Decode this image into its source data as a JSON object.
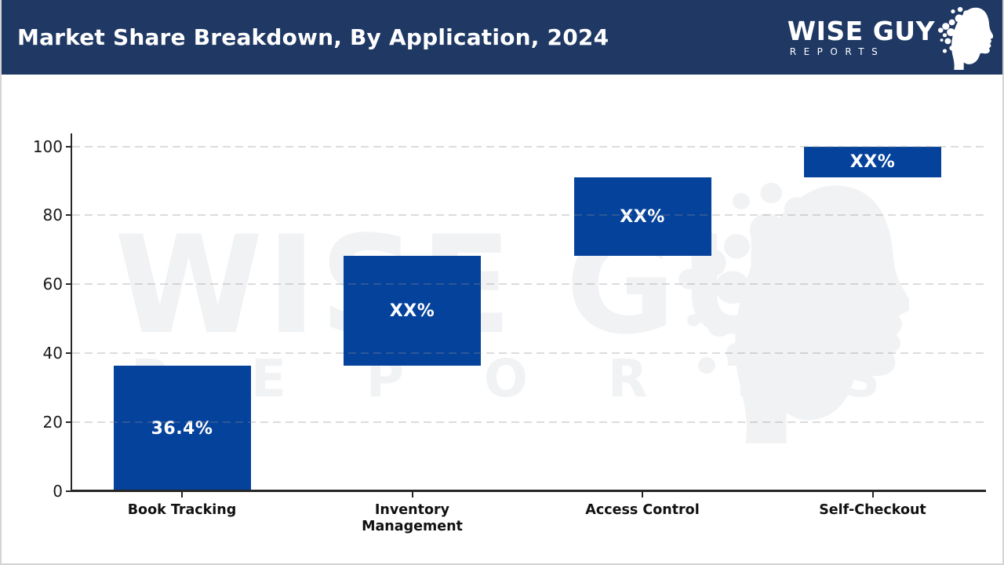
{
  "header": {
    "title": "Market Share Breakdown, By Application, 2024",
    "logo": {
      "line1": "WISE GUY",
      "line2": "REPORTS"
    }
  },
  "watermark": {
    "line1": "WISE GUY",
    "line2": "REPORTS"
  },
  "colors": {
    "header_bg": "#1F3864",
    "bar": "#05429B",
    "axis": "#262626",
    "grid": "rgba(140,140,140,0.3)",
    "watermark": "#F1F2F4",
    "bar_label": "#FFFFFF",
    "tick_text": "#1A1A1A",
    "border": "#D4D4D4"
  },
  "chart_data": {
    "type": "bar",
    "subtype": "floating-waterfall",
    "title": "Market Share Breakdown, By Application, 2024",
    "categories": [
      "Book Tracking",
      "Inventory Management",
      "Access Control",
      "Self-Checkout"
    ],
    "segments": [
      {
        "category": "Book Tracking",
        "start": 0,
        "end": 36.4,
        "label": "36.4%"
      },
      {
        "category": "Inventory Management",
        "start": 36.4,
        "end": 68.2,
        "label": "XX%"
      },
      {
        "category": "Access Control",
        "start": 68.2,
        "end": 91.0,
        "label": "XX%"
      },
      {
        "category": "Self-Checkout",
        "start": 91.0,
        "end": 100,
        "label": "XX%"
      }
    ],
    "ylim": [
      0,
      100
    ],
    "yticks": [
      0,
      20,
      40,
      60,
      80,
      100
    ],
    "xlabel": "",
    "ylabel": "",
    "grid": "horizontal-dashed",
    "legend": "none"
  }
}
